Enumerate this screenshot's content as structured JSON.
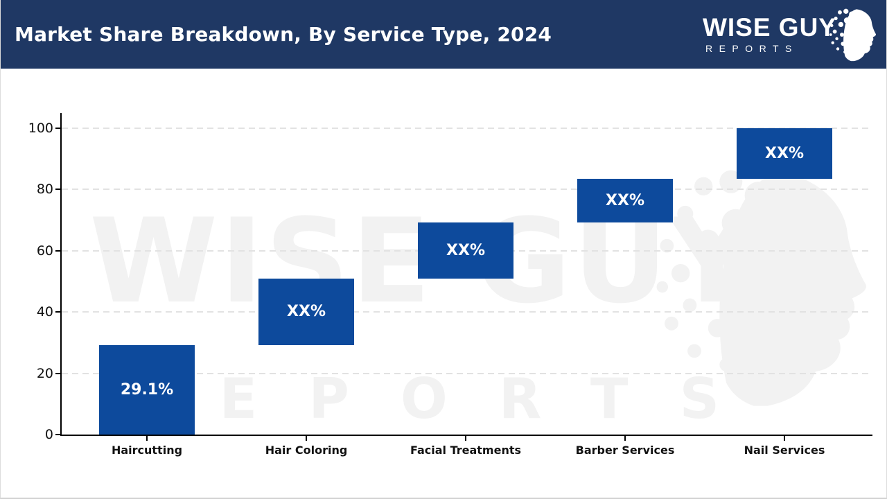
{
  "header": {
    "title": "Market Share Breakdown, By Service Type, 2024",
    "logo": {
      "line1": "WISE GUY",
      "line2": "REPORTS"
    }
  },
  "watermark": {
    "line1": "WISE GUY",
    "line2": "REPORTS"
  },
  "colors": {
    "header_bg": "#1f3864",
    "bar": "#0d4a9c",
    "grid": "#e2e2e2",
    "axis": "#000000",
    "watermark": "#f2f2f2",
    "bar_label": "#ffffff"
  },
  "chart_data": {
    "type": "bar",
    "subtype": "waterfall",
    "title": "Market Share Breakdown, By Service Type, 2024",
    "categories": [
      "Haircutting",
      "Hair Coloring",
      "Facial Treatments",
      "Barber Services",
      "Nail Services"
    ],
    "segments": [
      {
        "category": "Haircutting",
        "start": 0,
        "end": 29.1,
        "label": "29.1%"
      },
      {
        "category": "Hair Coloring",
        "start": 29.1,
        "end": 51.0,
        "label": "XX%"
      },
      {
        "category": "Facial Treatments",
        "start": 51.0,
        "end": 69.2,
        "label": "XX%"
      },
      {
        "category": "Barber Services",
        "start": 69.2,
        "end": 83.5,
        "label": "XX%"
      },
      {
        "category": "Nail Services",
        "start": 83.5,
        "end": 100.0,
        "label": "XX%"
      }
    ],
    "xlabel": "",
    "ylabel": "",
    "ylim": [
      0,
      100
    ],
    "yticks": [
      0,
      20,
      40,
      60,
      80,
      100
    ],
    "grid": true,
    "grid_style": "dashed",
    "legend": false
  }
}
